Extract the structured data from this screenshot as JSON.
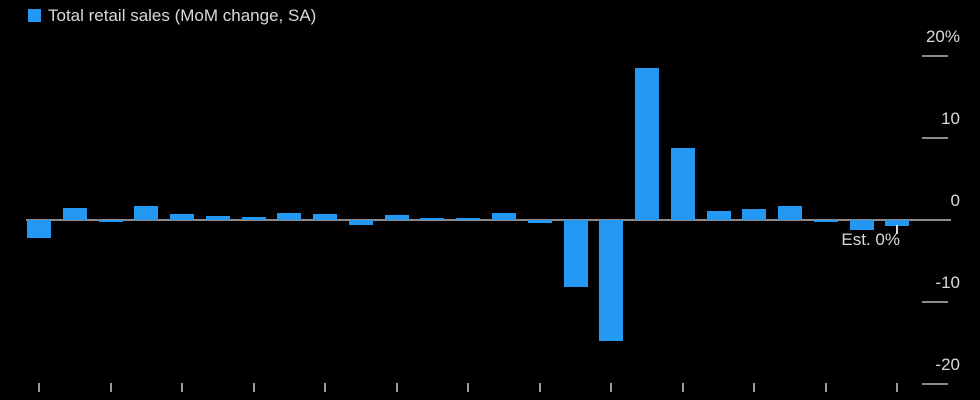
{
  "app": {
    "background_color": "#000000",
    "text_color": "#d9d9d9",
    "axis_color": "#8d8a83"
  },
  "legend": {
    "label": "Total retail sales (MoM change, SA)",
    "marker_color": "#2499f4"
  },
  "annotation": {
    "text": "Est. 0%",
    "attached_to_bar_index": 24
  },
  "chart_data": {
    "type": "bar",
    "title": "Total retail sales (MoM change, SA)",
    "series_name": "Total retail sales (MoM change, SA)",
    "series_color": "#2499f4",
    "values": [
      -2.2,
      1.5,
      -0.3,
      1.7,
      0.7,
      0.5,
      0.4,
      0.9,
      0.7,
      -0.6,
      0.6,
      0.3,
      0.3,
      0.9,
      -0.4,
      -8.2,
      -14.8,
      18.5,
      8.8,
      1.1,
      1.4,
      1.7,
      -0.3,
      -1.2,
      -0.7
    ],
    "bar_count": 25,
    "unit": "%",
    "xlabel": "",
    "ylabel": "",
    "y_ticks": [
      20,
      10,
      0,
      -10,
      -20
    ],
    "y_tick_labels": [
      "20%",
      "10",
      "0",
      "-10",
      "-20"
    ],
    "ylim": [
      -21,
      23
    ],
    "y_axis_position": "right",
    "x_axis": {
      "labels_visible": false,
      "tick_every_n_bars": 2,
      "first_tick_bar_index": 0
    },
    "grid": false,
    "legend_position": "top-left",
    "annotations": [
      {
        "text": "Est. 0%",
        "value": 0,
        "bar_index": 24
      }
    ]
  }
}
